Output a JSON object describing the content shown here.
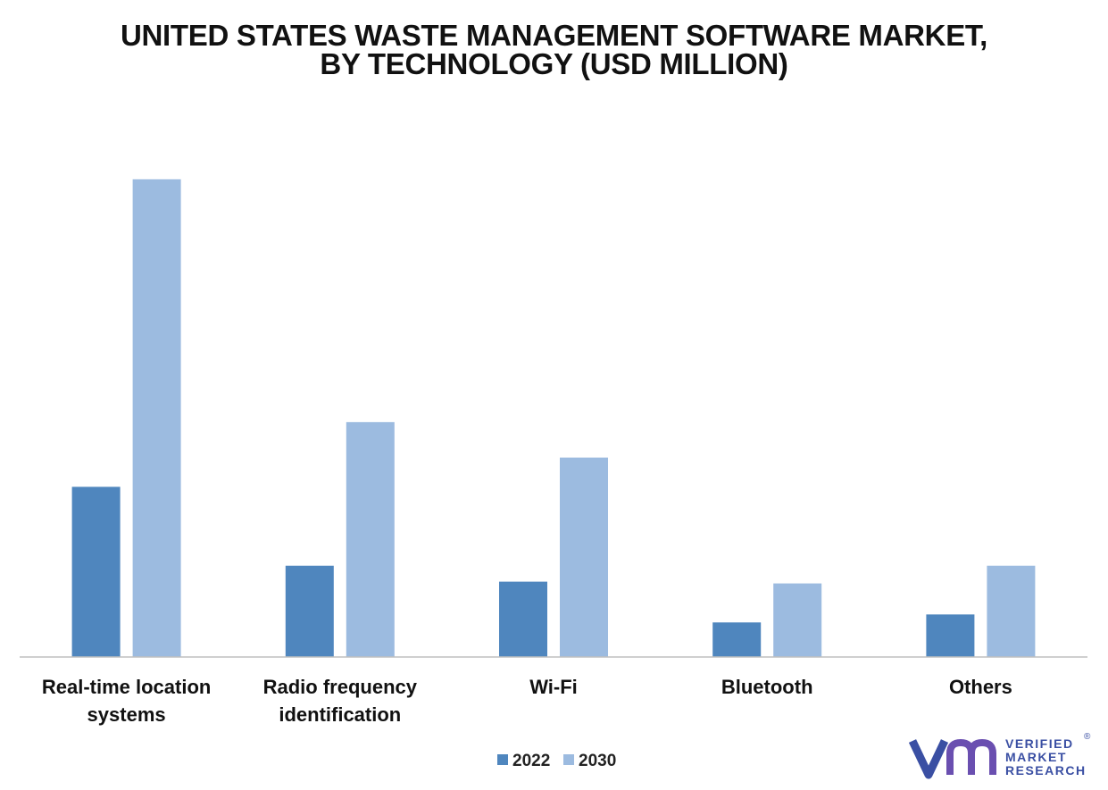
{
  "title_lines": [
    "UNITED STATES WASTE MANAGEMENT SOFTWARE MARKET,",
    "BY TECHNOLOGY (USD MILLION)"
  ],
  "chart_data": {
    "type": "bar",
    "title": "UNITED STATES WASTE MANAGEMENT SOFTWARE MARKET, BY TECHNOLOGY (USD MILLION)",
    "categories": [
      [
        "Real-time location",
        "systems"
      ],
      [
        "Radio frequency",
        "identification"
      ],
      [
        "Wi-Fi"
      ],
      [
        "Bluetooth"
      ],
      [
        "Others"
      ]
    ],
    "series": [
      {
        "name": "2022",
        "color": "#4f86be",
        "values": [
          192,
          103,
          85,
          39,
          48
        ]
      },
      {
        "name": "2030",
        "color": "#9cbbe0",
        "values": [
          539,
          265,
          225,
          83,
          103
        ]
      }
    ],
    "ylim": [
      0,
      560
    ],
    "grid": false,
    "legend": "bottom-center",
    "xlabel": "",
    "ylabel": ""
  },
  "logo": {
    "lines": [
      "VERIFIED",
      "MARKET",
      "RESEARCH"
    ],
    "registered": "®",
    "icon": "vmr-logo-icon",
    "color": "#3a4fa3"
  }
}
